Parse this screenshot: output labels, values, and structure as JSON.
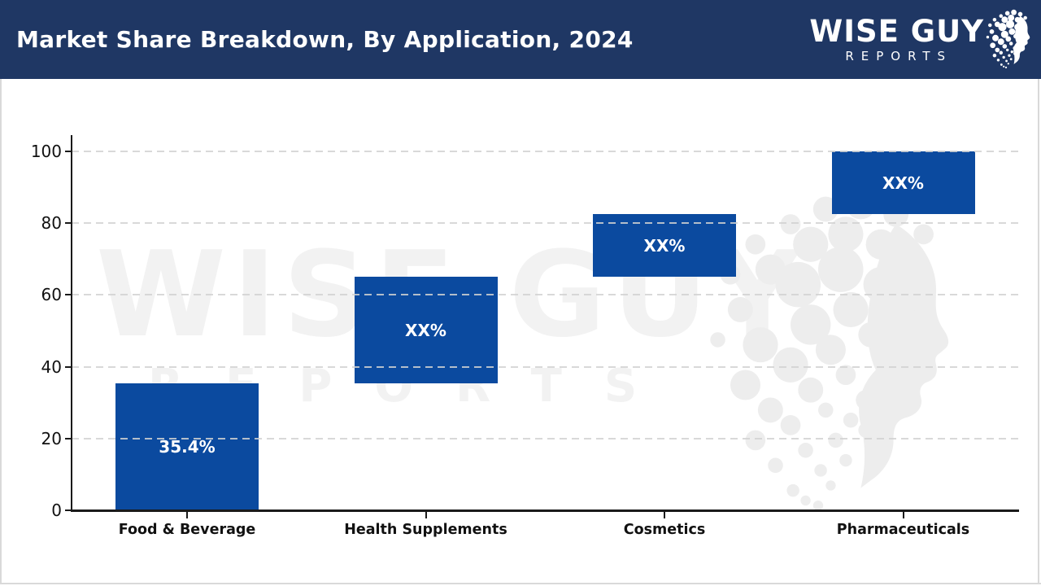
{
  "header": {
    "title": "Market Share Breakdown, By Application, 2024",
    "bg_color": "#1f3764",
    "logo": {
      "line1": "WISE GUY",
      "line2": "REPORTS"
    }
  },
  "watermark": {
    "line1": "WISE GUY",
    "line2": "REPORTS"
  },
  "chart_data": {
    "type": "bar",
    "subtype": "floating-waterfall",
    "title": "Market Share Breakdown, By Application, 2024",
    "categories": [
      "Food & Beverage",
      "Health Supplements",
      "Cosmetics",
      "Pharmaceuticals"
    ],
    "bars": [
      {
        "category": "Food & Beverage",
        "start": 0,
        "end": 35.4,
        "label": "35.4%"
      },
      {
        "category": "Health Supplements",
        "start": 35.4,
        "end": 65,
        "label": "XX%"
      },
      {
        "category": "Cosmetics",
        "start": 65,
        "end": 82.5,
        "label": "XX%"
      },
      {
        "category": "Pharmaceuticals",
        "start": 82.5,
        "end": 100,
        "label": "XX%"
      }
    ],
    "xlabel": "",
    "ylabel": "",
    "ylim": [
      0,
      100
    ],
    "yticks": [
      0,
      20,
      40,
      60,
      80,
      100
    ],
    "grid": "horizontal-dashed",
    "grid_color": "#d9d9d9",
    "bar_color": "#0b4a9f",
    "bar_label_color": "#ffffff",
    "legend": "none"
  }
}
